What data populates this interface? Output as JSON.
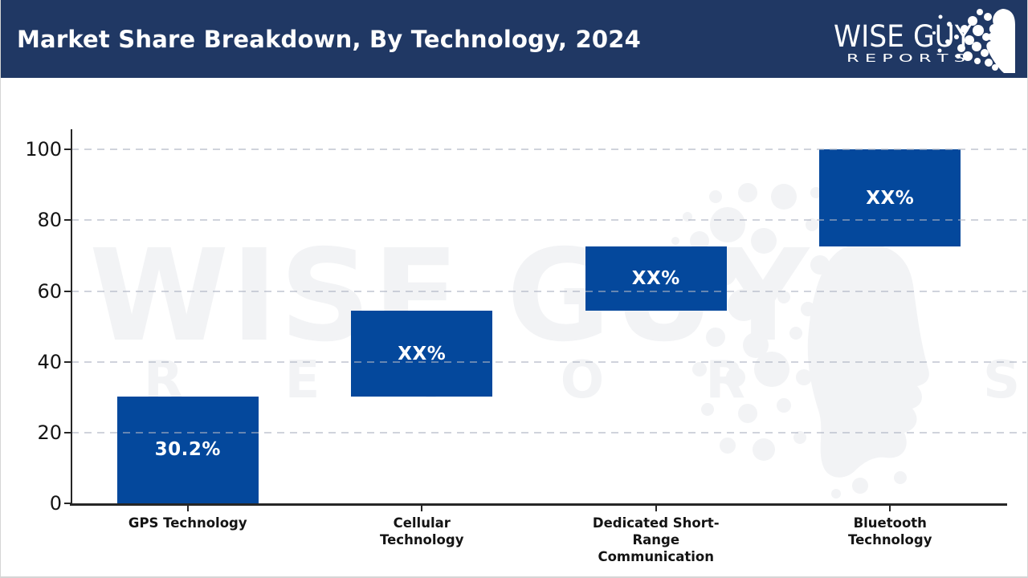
{
  "header": {
    "title": "Market Share Breakdown, By Technology, 2024",
    "logo": {
      "line1": "WISE GUY",
      "line2": "R E P O R T S",
      "face_icon": "dotted-head-profile"
    }
  },
  "watermark": {
    "line1": "WISE GUY",
    "line2": "R E P O R T S",
    "face_icon": "dotted-head-profile"
  },
  "chart_data": {
    "type": "bar",
    "subtype": "floating-segment-waterfall",
    "title": "Market Share Breakdown, By Technology, 2024",
    "categories": [
      "GPS Technology",
      "Cellular\nTechnology",
      "Dedicated Short-\nRange\nCommunication",
      "Bluetooth\nTechnology"
    ],
    "segments": [
      {
        "category": "GPS Technology",
        "start": 0,
        "end": 30.2,
        "label": "30.2%"
      },
      {
        "category": "Cellular Technology",
        "start": 30.2,
        "end": 54.4,
        "label": "XX%"
      },
      {
        "category": "Dedicated Short-Range Communication",
        "start": 54.5,
        "end": 72.6,
        "label": "XX%"
      },
      {
        "category": "Bluetooth Technology",
        "start": 72.6,
        "end": 100,
        "label": "XX%"
      }
    ],
    "yticks": [
      0,
      20,
      40,
      60,
      80,
      100
    ],
    "ylim": [
      0,
      105
    ],
    "xlabel": "",
    "ylabel": "",
    "grid": "horizontal-dashed",
    "legend": "none"
  },
  "colors": {
    "header_bg": "#203864",
    "bar_fill": "#04489c",
    "bar_label": "#ffffff",
    "axis": "#262626",
    "tick_text": "#141414",
    "gridline": "#d8d8d8",
    "watermark": "#f2f3f5",
    "page_bg": "#ffffff"
  }
}
